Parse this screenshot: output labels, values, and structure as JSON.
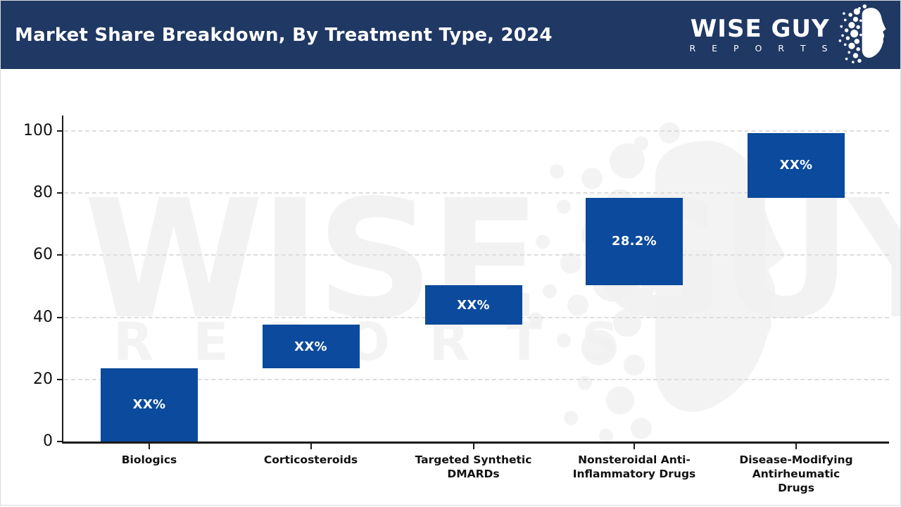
{
  "header": {
    "title": "Market Share Breakdown, By Treatment Type, 2024",
    "logo": {
      "wise_guy": "WISE GUY",
      "reports": "R E P O R T S"
    }
  },
  "watermark": {
    "big": "WISE GUY",
    "small": "REPORTS"
  },
  "icons": {
    "logo_head": "dotted-head-profile-icon",
    "watermark_head": "dotted-head-profile-watermark"
  },
  "colors": {
    "header_bg": "#1f3864",
    "bar": "#0b4a9c",
    "bar_label": "#ffffff",
    "gridline": "#dddddd",
    "axis": "#1a1a1a",
    "watermark": "#f2f2f2"
  },
  "chart_data": {
    "type": "bar",
    "subtype": "waterfall",
    "title": "Market Share Breakdown, By Treatment Type, 2024",
    "categories": [
      "Biologics",
      "Corticosteroids",
      "Targeted Synthetic\nDMARDs",
      "Nonsteroidal Anti-\nInflammatory Drugs",
      "Disease-Modifying\nAntirheumatic\nDrugs"
    ],
    "bars": [
      {
        "name": "Biologics",
        "label": "XX%",
        "start": 0,
        "end": 23.6,
        "height": 23.6
      },
      {
        "name": "Corticosteroids",
        "label": "XX%",
        "start": 23.6,
        "end": 37.6,
        "height": 14.0
      },
      {
        "name": "Targeted Synthetic DMARDs",
        "label": "XX%",
        "start": 37.6,
        "end": 50.3,
        "height": 12.7
      },
      {
        "name": "Nonsteroidal Anti-Inflammatory Drugs",
        "label": "28.2%",
        "start": 50.3,
        "end": 78.5,
        "height": 28.2
      },
      {
        "name": "Disease-Modifying Antirheumatic Drugs",
        "label": "XX%",
        "start": 78.5,
        "end": 99.3,
        "height": 20.8
      }
    ],
    "yticks": [
      0,
      20,
      40,
      60,
      80,
      100
    ],
    "ylim": [
      0,
      105
    ],
    "xlabel": "",
    "ylabel": "",
    "grid": "horizontal-dashed",
    "legend": "none",
    "bar_color": "#0b4a9c",
    "bar_label_color": "#ffffff"
  }
}
